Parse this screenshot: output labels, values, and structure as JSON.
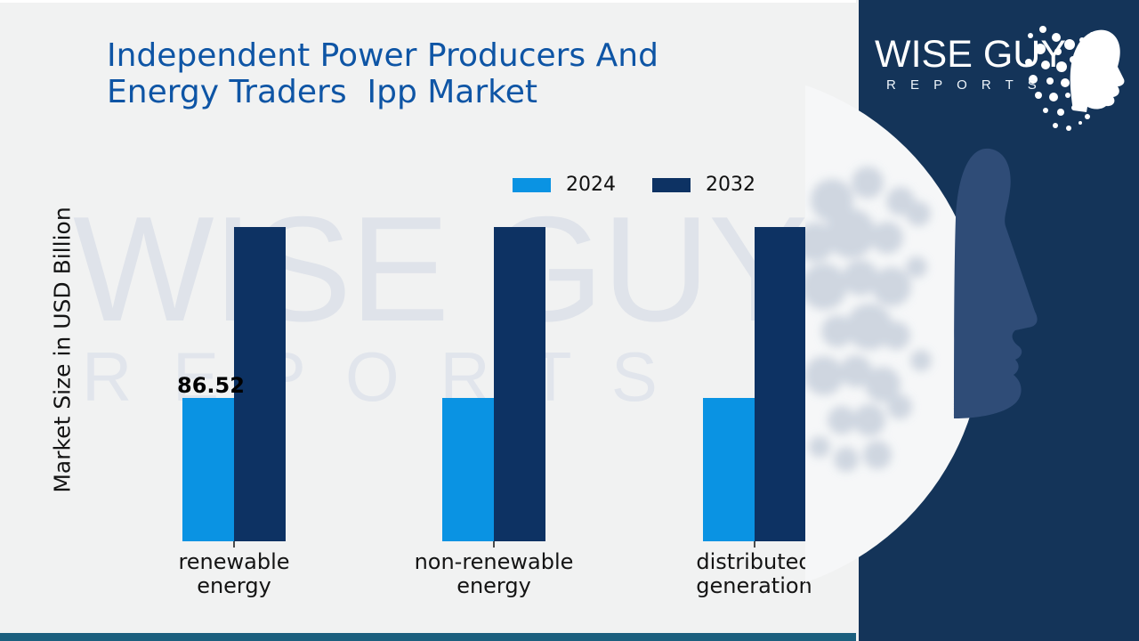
{
  "page": {
    "background_color": "#f1f2f2",
    "top_strip_color": "#ffffff",
    "bottom_bar_color": "#1b5f7e"
  },
  "header": {
    "title_line1": "Independent Power Producers And",
    "title_line2": "Energy Traders  Ipp Market",
    "title_color": "#0e55a5"
  },
  "watermark": {
    "line1": "WISE GUY",
    "line2": "R E P O R T S",
    "color": "#dfe3ea"
  },
  "brand": {
    "name": "WISE GUY",
    "sub": "R E P O R T S",
    "band_color": "#143459",
    "face_silhouette_color": "#2f4c77",
    "dot_face_color": "#ffffff"
  },
  "chart_data": {
    "type": "bar",
    "title": "Independent Power Producers And Energy Traders Ipp Market",
    "ylabel": "Market Size in USD Billion",
    "xlabel": "",
    "categories": [
      "renewable energy",
      "non-renewable energy",
      "distributed generation"
    ],
    "series": [
      {
        "name": "2024",
        "color": "#0a93e3",
        "values": [
          86.52,
          86.52,
          86.52
        ]
      },
      {
        "name": "2032",
        "color": "#0d3263",
        "values": [
          190,
          190,
          190
        ],
        "note": "bars unlabeled; values estimated from bar-height ratio vs labeled 86.52"
      }
    ],
    "value_labels": [
      {
        "series": "2024",
        "category": "renewable energy",
        "text": "86.52"
      }
    ],
    "legend_position": "top-center",
    "grid": false,
    "baseline_value": 0
  }
}
